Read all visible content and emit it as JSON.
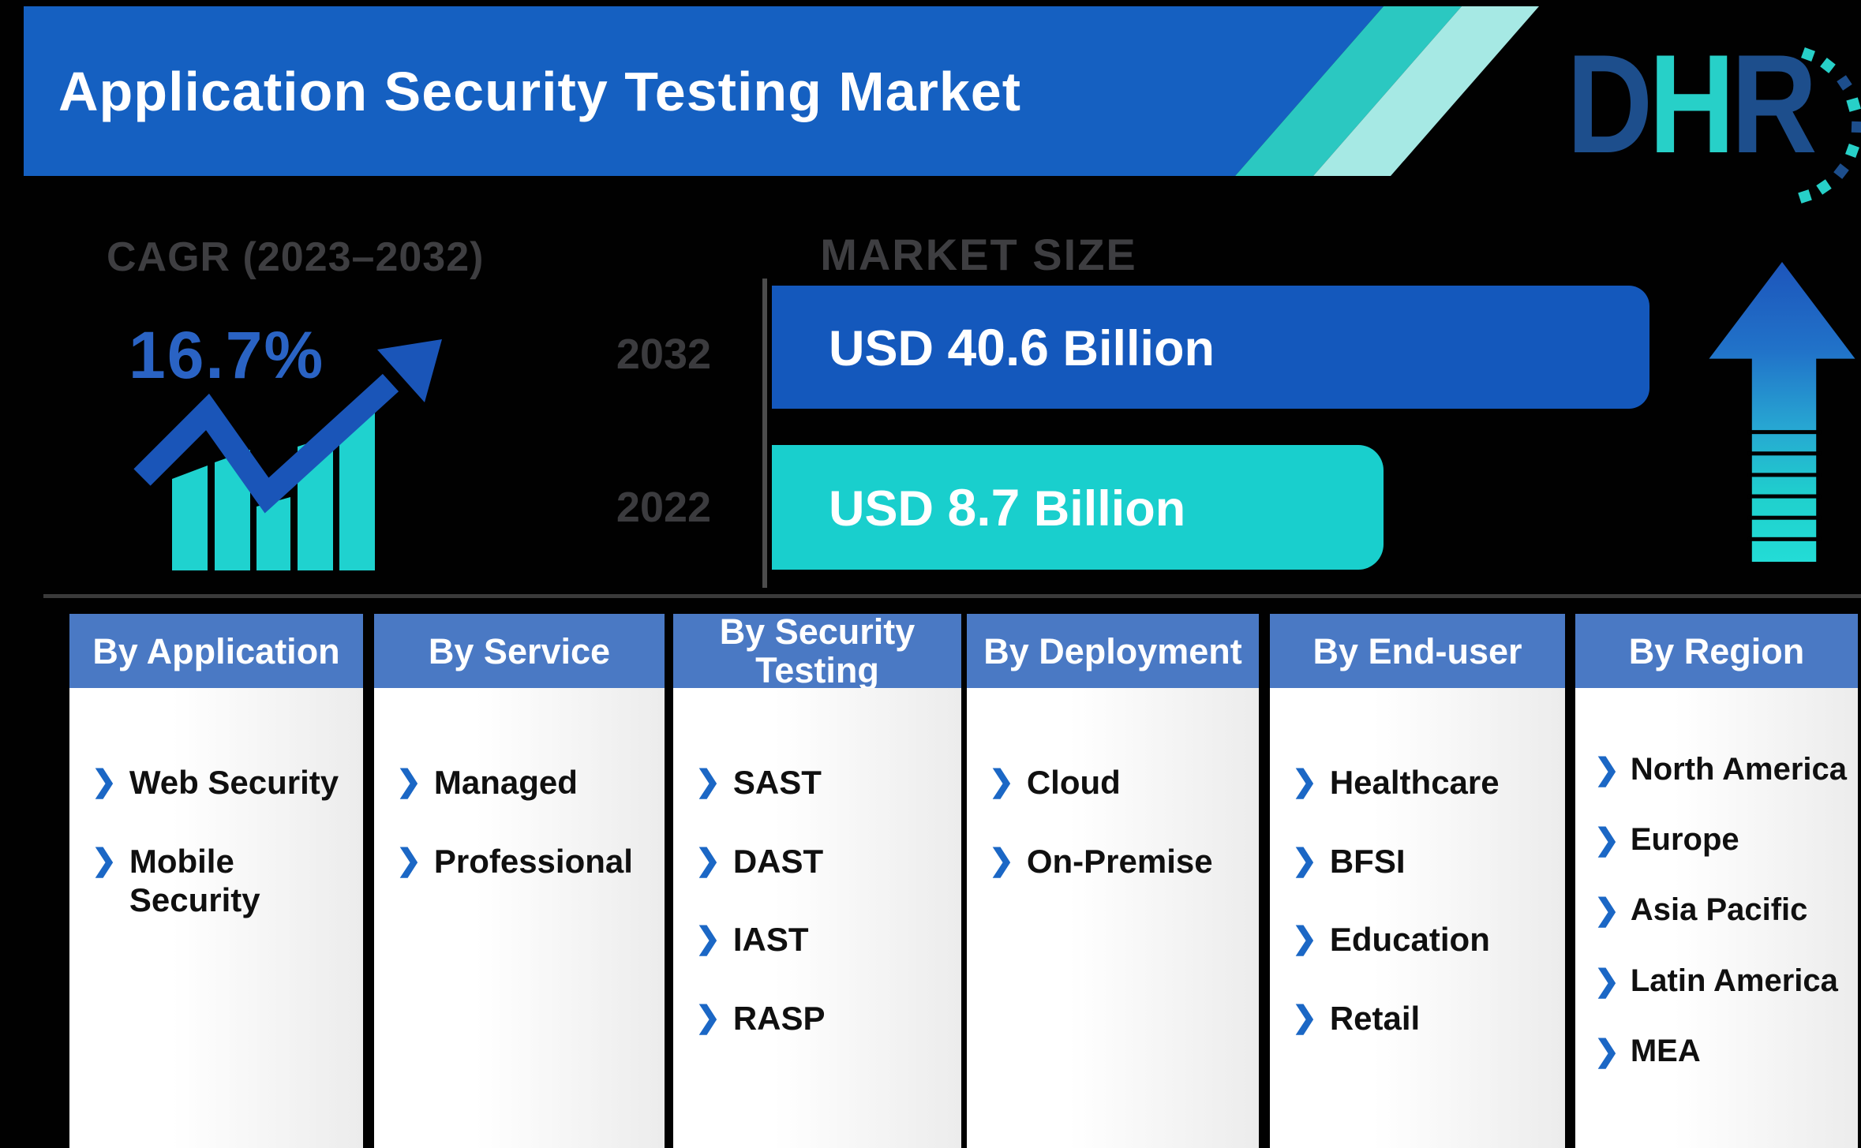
{
  "colors": {
    "background": "#010101",
    "banner_blue": "#1560c1",
    "stripe_teal": "#2bc8c1",
    "stripe_light_teal": "#a6e9e4",
    "bar_blue": "#1458bc",
    "bar_teal": "#19cfcd",
    "column_header_blue": "#4a79c4",
    "chevron_blue": "#1b67c5",
    "muted_label_gray": "#3e3e41",
    "cagr_value_blue": "#2a63c4",
    "logo_navy": "#1d4e8c",
    "logo_teal": "#27d0c8"
  },
  "banner": {
    "title": "Application Security Testing Market",
    "logo_letters": [
      "D",
      "H",
      "R"
    ]
  },
  "cagr": {
    "label": "CAGR (2023–2032)",
    "value": "16.7%"
  },
  "market_size": {
    "title": "MARKET SIZE",
    "rows": [
      {
        "year": "2032",
        "prefix": "USD",
        "value": "40.6",
        "suffix": "Billion"
      },
      {
        "year": "2022",
        "prefix": "USD",
        "value": "8.7",
        "suffix": "Billion"
      }
    ]
  },
  "segments": {
    "columns": [
      {
        "title": "By Application",
        "items": [
          "Web Security",
          "Mobile Security"
        ]
      },
      {
        "title": "By Service",
        "items": [
          "Managed",
          "Professional"
        ]
      },
      {
        "title": "By Security Testing",
        "items": [
          "SAST",
          "DAST",
          "IAST",
          "RASP"
        ]
      },
      {
        "title": "By Deployment",
        "items": [
          "Cloud",
          "On-Premise"
        ]
      },
      {
        "title": "By End-user",
        "items": [
          "Healthcare",
          "BFSI",
          "Education",
          "Retail"
        ]
      },
      {
        "title": "By Region",
        "items": [
          "North America",
          "Europe",
          "Asia Pacific",
          "Latin America",
          "MEA"
        ]
      }
    ]
  },
  "chart_data": {
    "type": "bar",
    "orientation": "horizontal",
    "title": "MARKET SIZE",
    "categories": [
      "2032",
      "2022"
    ],
    "values": [
      40.6,
      8.7
    ],
    "unit": "USD Billion",
    "bar_labels": [
      "USD 40.6 Billion",
      "USD 8.7 Billion"
    ],
    "bar_colors": [
      "#1458bc",
      "#19cfcd"
    ],
    "annotations": [
      "CAGR (2023–2032): 16.7%"
    ],
    "legend": false,
    "grid": false
  }
}
